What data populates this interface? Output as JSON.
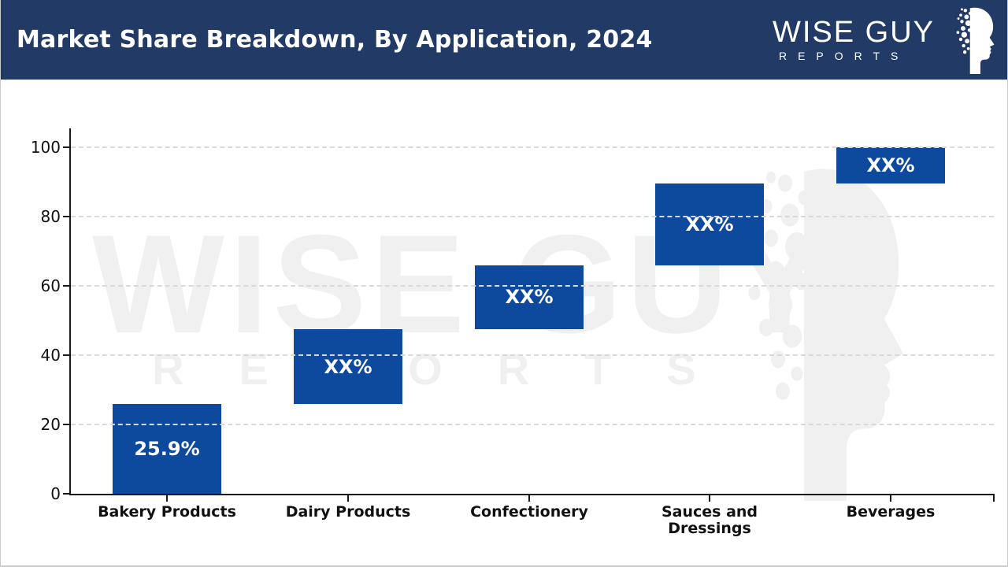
{
  "page": {
    "background": "#ffffff",
    "border_color": "#cccccc"
  },
  "header": {
    "background": "#213a66",
    "title": "Market Share Breakdown, By Application, 2024",
    "logo": {
      "line1": "WISE GUY",
      "line2": "REPORTS"
    }
  },
  "watermark": {
    "line1": "WISE GUY",
    "line2": "REPORTS"
  },
  "chart_data": {
    "type": "bar",
    "subtype": "waterfall",
    "title": "Market Share Breakdown, By Application, 2024",
    "categories": [
      "Bakery Products",
      "Dairy Products",
      "Confectionery",
      "Sauces and Dressings",
      "Beverages"
    ],
    "segments": [
      [
        0,
        25.9
      ],
      [
        25.9,
        47.5
      ],
      [
        47.5,
        66.0
      ],
      [
        66.0,
        89.5
      ],
      [
        89.5,
        100
      ]
    ],
    "labels": [
      "25.9%",
      "XX%",
      "XX%",
      "XX%",
      "XX%"
    ],
    "yticks": [
      0,
      20,
      40,
      60,
      80,
      100
    ],
    "ylim": [
      0,
      105
    ],
    "xlabel": "",
    "ylabel": "",
    "grid": "horizontal-dashed",
    "legend": "none",
    "bar_color": "#0d4a9e",
    "bar_label_color": "#ffffff",
    "axis_color": "#1a1a1a",
    "grid_color": "#d9d9d9"
  }
}
